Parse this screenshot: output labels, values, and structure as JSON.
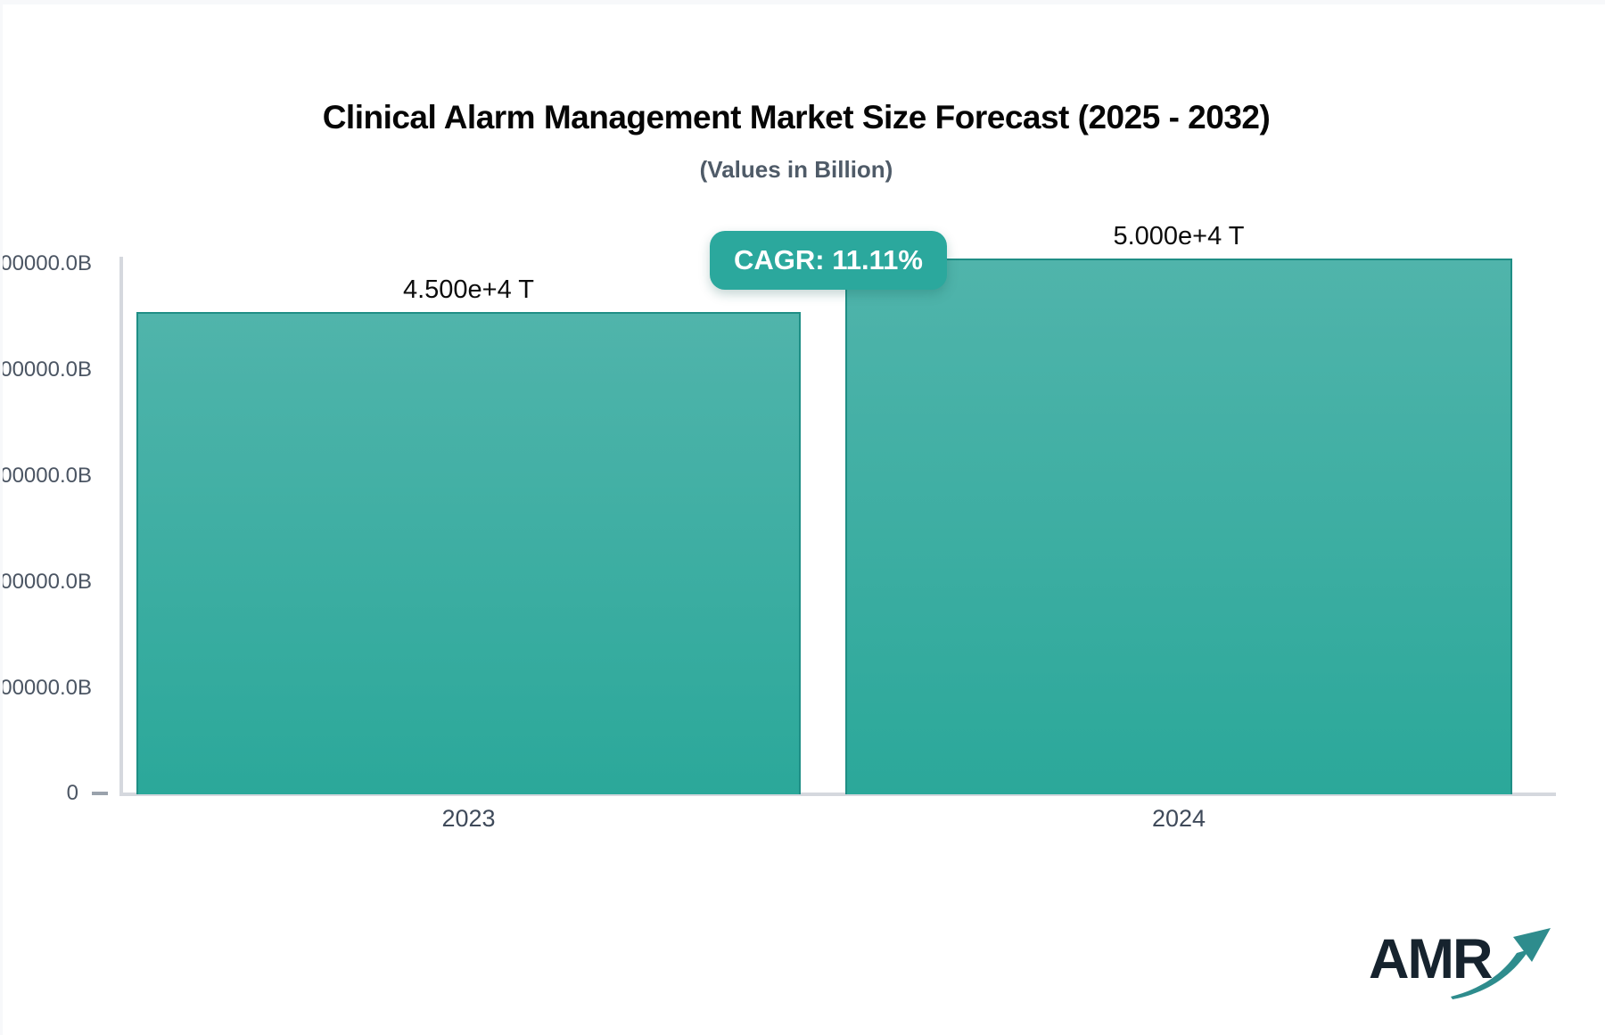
{
  "header": {
    "title": "Clinical Alarm Management Market Size Forecast (2025 - 2032)",
    "subtitle": "(Values in Billion)"
  },
  "badge": {
    "label": "CAGR: 11.11%"
  },
  "logo": {
    "text": "AMR",
    "arrow_icon": "growth-arrow-icon"
  },
  "colors": {
    "bar_gradient_top": "#50b4ab",
    "bar_gradient_bottom": "#2ba89a",
    "bar_border": "#1f8e85",
    "badge_background": "#2ba89d",
    "axis_line": "#d5d8de",
    "tick_text": "#4b5563",
    "logo_arrow": "#2e8c8d"
  },
  "chart_data": {
    "type": "bar",
    "title": "Clinical Alarm Management Market Size Forecast (2025 - 2032)",
    "subtitle": "(Values in Billion)",
    "categories": [
      "2023",
      "2024"
    ],
    "values": [
      45000,
      50000
    ],
    "value_labels": [
      "4.500e+4 T",
      "5.000e+4 T"
    ],
    "annotation": "CAGR: 11.11%",
    "ylim": [
      0,
      50000
    ],
    "y_tick_labels": [
      "00000.0B",
      "00000.0B",
      "00000.0B",
      "00000.0B",
      "00000.0B"
    ],
    "y_zero_label": "0",
    "grid": false,
    "legend_position": "none"
  }
}
